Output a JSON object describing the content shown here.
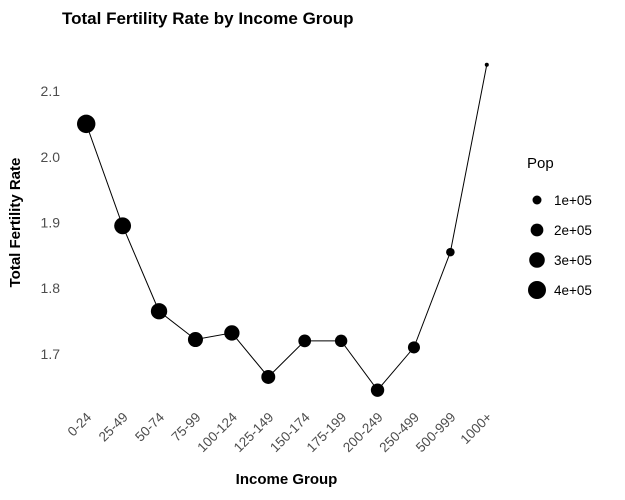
{
  "chart_data": {
    "type": "scatter",
    "title": "Total Fertility Rate by Income Group",
    "xlabel": "Income Group",
    "ylabel": "Total Fertility Rate",
    "categories": [
      "0-24",
      "25-49",
      "50-74",
      "75-99",
      "100-124",
      "125-149",
      "150-174",
      "175-199",
      "200-249",
      "250-499",
      "500-999",
      "1000+"
    ],
    "series": [
      {
        "name": "Total Fertility Rate",
        "values": [
          2.05,
          1.895,
          1.765,
          1.722,
          1.732,
          1.665,
          1.72,
          1.72,
          1.645,
          1.71,
          1.855,
          2.14
        ]
      },
      {
        "name": "Pop",
        "values": [
          420000,
          350000,
          330000,
          280000,
          290000,
          240000,
          200000,
          190000,
          220000,
          180000,
          90000,
          20000
        ]
      }
    ],
    "yticks": [
      "1.7",
      "1.8",
      "1.9",
      "2.0",
      "2.1"
    ],
    "ylim": [
      1.63,
      2.17
    ],
    "grid": false,
    "line": true,
    "legend": {
      "title": "Pop",
      "position": "right",
      "entries": [
        {
          "label": "1e+05",
          "value": 100000
        },
        {
          "label": "2e+05",
          "value": 200000
        },
        {
          "label": "3e+05",
          "value": 300000
        },
        {
          "label": "4e+05",
          "value": 400000
        }
      ]
    },
    "colors": {
      "point": "#000000",
      "line": "#000000",
      "title": "#000000",
      "axis_title": "#000000",
      "tick_label": "#4d4d4d",
      "legend_label": "#000000",
      "background": "#ffffff"
    }
  }
}
